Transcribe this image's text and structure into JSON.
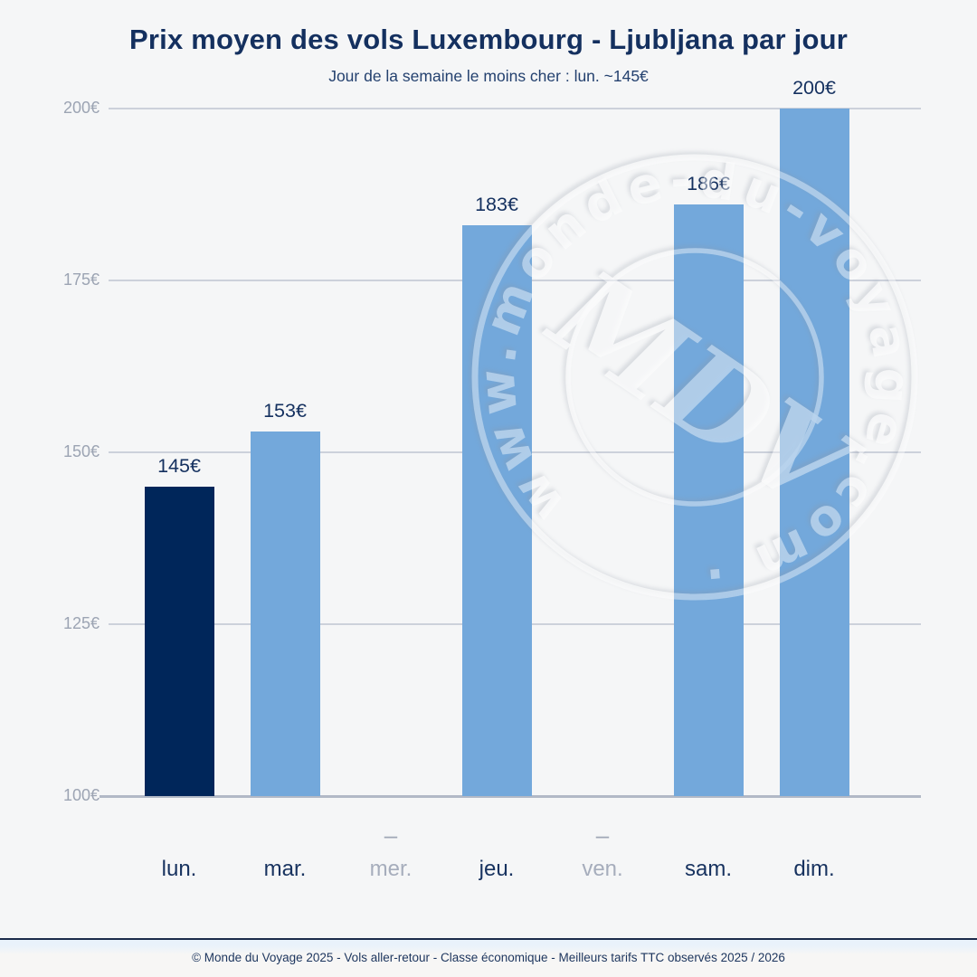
{
  "header": {
    "title": "Prix moyen des vols Luxembourg - Ljubljana par jour",
    "subtitle": "Jour de la semaine le moins cher : lun. ~145€"
  },
  "chart_data": {
    "type": "bar",
    "title": "Prix moyen des vols Luxembourg - Ljubljana par jour",
    "categories": [
      "lun.",
      "mar.",
      "mer.",
      "jeu.",
      "ven.",
      "sam.",
      "dim."
    ],
    "values": [
      145,
      153,
      null,
      183,
      null,
      186,
      200
    ],
    "value_labels": [
      "145€",
      "153€",
      null,
      "183€",
      null,
      "186€",
      "200€"
    ],
    "no_data_marker": "–",
    "highlight_index": 0,
    "xlabel": "",
    "ylabel": "",
    "ylim": [
      100,
      200
    ],
    "yticks": [
      100,
      125,
      150,
      175,
      200
    ],
    "ytick_labels": [
      "100€",
      "125€",
      "150€",
      "175€",
      "200€"
    ],
    "grid": true,
    "legend": "none",
    "colors": {
      "bar": "#73a8db",
      "bar_highlight": "#00265a",
      "value_label": "#14305f",
      "xlabel_active": "#17325f",
      "xlabel_inactive": "#a6adbc",
      "tick_label": "#9ca4b3",
      "gridline": "#ccd1db",
      "baseline": "#b2b9c6",
      "background": "#f5f6f7"
    }
  },
  "watermark": {
    "ring_text": "www.monde-du-voyage.com ·",
    "center_text": "MDV"
  },
  "footer": {
    "text": "© Monde du Voyage 2025 - Vols aller-retour - Classe économique - Meilleurs tarifs TTC observés 2025 / 2026"
  }
}
